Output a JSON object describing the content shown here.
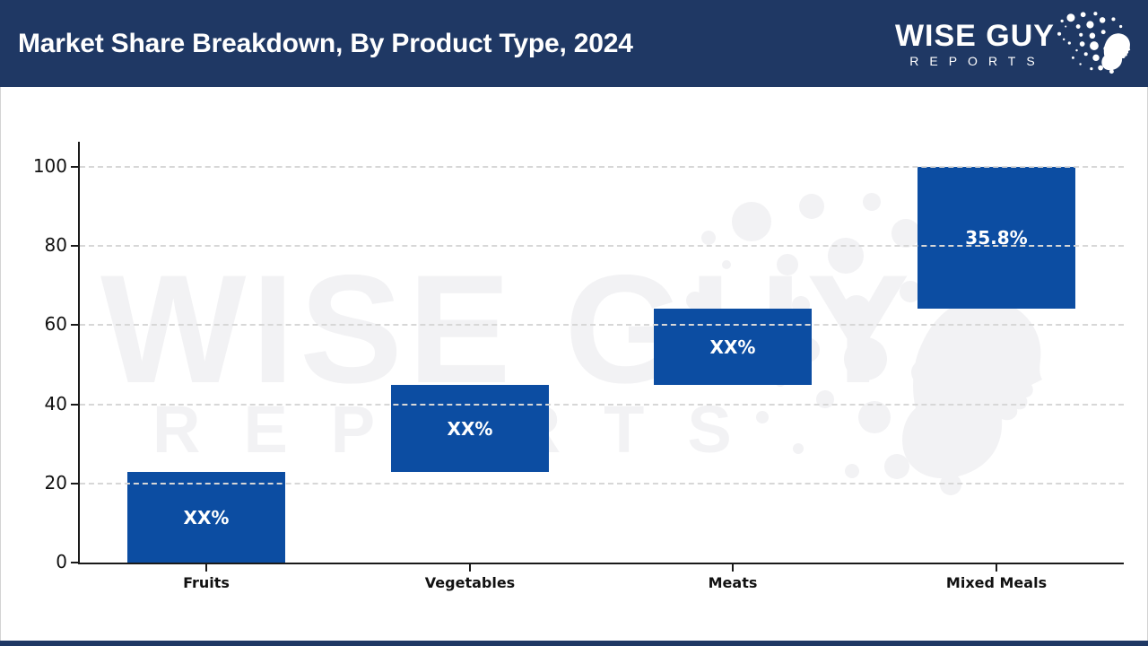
{
  "header": {
    "title": "Market Share Breakdown, By Product Type, 2024",
    "logo": {
      "name": "WISE GUY",
      "sub": "REPORTS"
    }
  },
  "watermark": {
    "line1": "WISE GUY",
    "line2": "REPORTS"
  },
  "chart_data": {
    "type": "bar",
    "subtype": "waterfall",
    "title": "Market Share Breakdown, By Product Type, 2024",
    "categories": [
      "Fruits",
      "Vegetables",
      "Meats",
      "Mixed Meals"
    ],
    "bars": [
      {
        "category": "Fruits",
        "from": 0,
        "to": 23,
        "label": "XX%"
      },
      {
        "category": "Vegetables",
        "from": 23,
        "to": 45,
        "label": "XX%"
      },
      {
        "category": "Meats",
        "from": 45,
        "to": 64.2,
        "label": "XX%"
      },
      {
        "category": "Mixed Meals",
        "from": 64.2,
        "to": 100,
        "label": "35.8%"
      }
    ],
    "xlabel": "",
    "ylabel": "",
    "ylim": [
      0,
      106
    ],
    "yticks": [
      0,
      20,
      40,
      60,
      80,
      100
    ],
    "grid": "horizontal-dashed-above-bars",
    "legend": "none",
    "bar_color": "#0C4DA2"
  },
  "colors": {
    "header_bg": "#1F3864",
    "footer_bg": "#1F3864",
    "bar": "#0C4DA2",
    "grid": "#D7D7D7",
    "axis": "#1A1A1A",
    "watermark": "#F2F2F4"
  }
}
